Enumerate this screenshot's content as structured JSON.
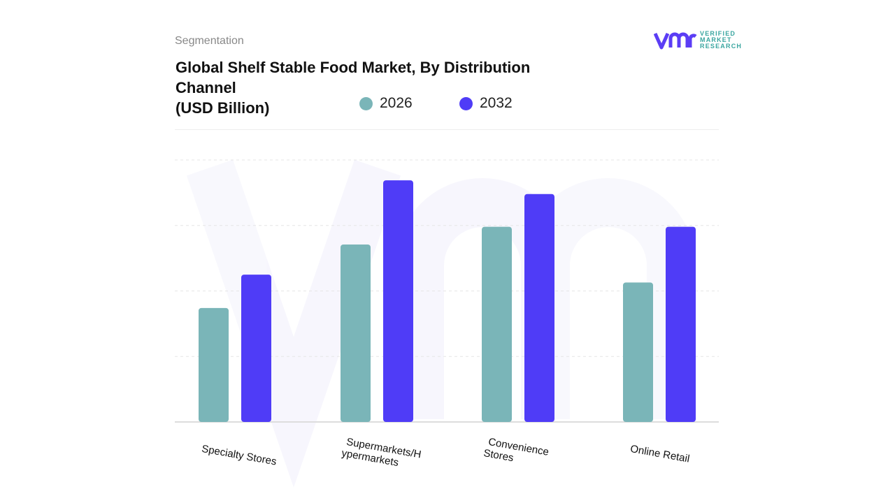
{
  "header": {
    "segment_label": "Segmentation",
    "title": "Global Shelf Stable Food Market, By Distribution Channel",
    "unit": "(USD Billion)"
  },
  "logo": {
    "text_lines": [
      "VERIFIED",
      "MARKET",
      "RESEARCH"
    ],
    "mark": "vmr"
  },
  "colors": {
    "2026": "#7ab5b8",
    "2032": "#4f3cf7"
  },
  "chart_data": {
    "type": "bar",
    "title": "Global Shelf Stable Food Market, By Distribution Channel (USD Billion)",
    "categories": [
      "Specialty Stores",
      "Supermarkets/H ypermarkets",
      "Convenience Stores",
      "Online Retail"
    ],
    "category_lines": [
      [
        "Specialty Stores"
      ],
      [
        "Supermarkets/H",
        "ypermarkets"
      ],
      [
        "Convenience",
        "Stores"
      ],
      [
        "Online Retail"
      ]
    ],
    "series": [
      {
        "name": "2026",
        "color": "#7ab5b8",
        "values": [
          1.74,
          2.71,
          2.98,
          2.13
        ]
      },
      {
        "name": "2032",
        "color": "#4f3cf7",
        "values": [
          2.25,
          3.69,
          3.48,
          2.98
        ]
      }
    ],
    "ylim": [
      0,
      4
    ],
    "grid": true,
    "y_ticks_shown": false,
    "legend_placement": "top"
  }
}
